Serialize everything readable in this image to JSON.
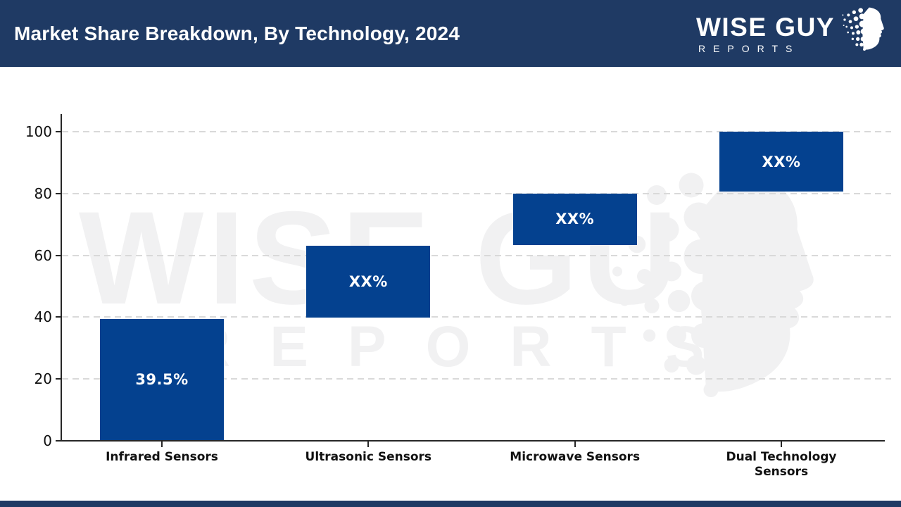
{
  "header": {
    "title": "Market Share Breakdown, By Technology, 2024",
    "logo": {
      "line1": "WISE GUY",
      "line2": "REPORTS"
    }
  },
  "watermark": {
    "line1": "WISE GUY",
    "line2": "REPORTS"
  },
  "colors": {
    "header_bg": "#1f3a64",
    "footer_bg": "#1f3a64",
    "bar": "#04418f",
    "bar_label": "#ffffff",
    "grid": "#d9d9d9",
    "axis": "#262626",
    "watermark": "#f1f1f2"
  },
  "chart_data": {
    "type": "bar",
    "subtype": "waterfall",
    "title": "Market Share Breakdown, By Technology, 2024",
    "categories": [
      "Infrared Sensors",
      "Ultrasonic Sensors",
      "Microwave Sensors",
      "Dual Technology Sensors"
    ],
    "bars": [
      {
        "category": "Infrared Sensors",
        "start": 0,
        "end": 39.5,
        "label": "39.5%"
      },
      {
        "category": "Ultrasonic Sensors",
        "start": 39.8,
        "end": 63.1,
        "label": "XX%"
      },
      {
        "category": "Microwave Sensors",
        "start": 63.4,
        "end": 80.0,
        "label": "XX%"
      },
      {
        "category": "Dual Technology Sensors",
        "start": 80.6,
        "end": 100.0,
        "label": "XX%"
      }
    ],
    "y_ticks": [
      0,
      20,
      40,
      60,
      80,
      100
    ],
    "ylim": [
      0,
      105
    ],
    "xlabel": "",
    "ylabel": "",
    "grid": "dashed-horizontal",
    "legend": null
  }
}
